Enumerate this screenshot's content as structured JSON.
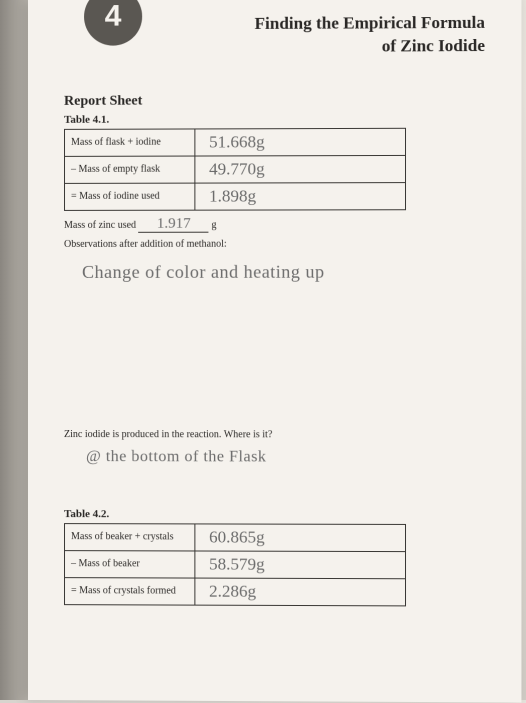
{
  "badge": "4",
  "title_line1": "Finding the Empirical Formula",
  "title_line2": "of Zinc Iodide",
  "report_head": "Report Sheet",
  "table41": {
    "label": "Table 4.1.",
    "rows": [
      {
        "label": "Mass of flask + iodine",
        "value": "51.668g"
      },
      {
        "label": "– Mass of empty flask",
        "value": "49.770g"
      },
      {
        "label": "= Mass of iodine used",
        "value": "1.898g"
      }
    ]
  },
  "zinc_line_prefix": "Mass of zinc used",
  "zinc_value": "1.917",
  "zinc_unit": "g",
  "obs_prompt": "Observations after addition of methanol:",
  "obs_answer": "Change of color and heating up",
  "where_prompt": "Zinc iodide is produced in the reaction. Where is it?",
  "where_answer": "@ the bottom of the Flask",
  "table42": {
    "label": "Table 4.2.",
    "rows": [
      {
        "label": "Mass of beaker + crystals",
        "value": "60.865g"
      },
      {
        "label": "– Mass of beaker",
        "value": "58.579g"
      },
      {
        "label": "= Mass of crystals formed",
        "value": "2.286g"
      }
    ]
  }
}
